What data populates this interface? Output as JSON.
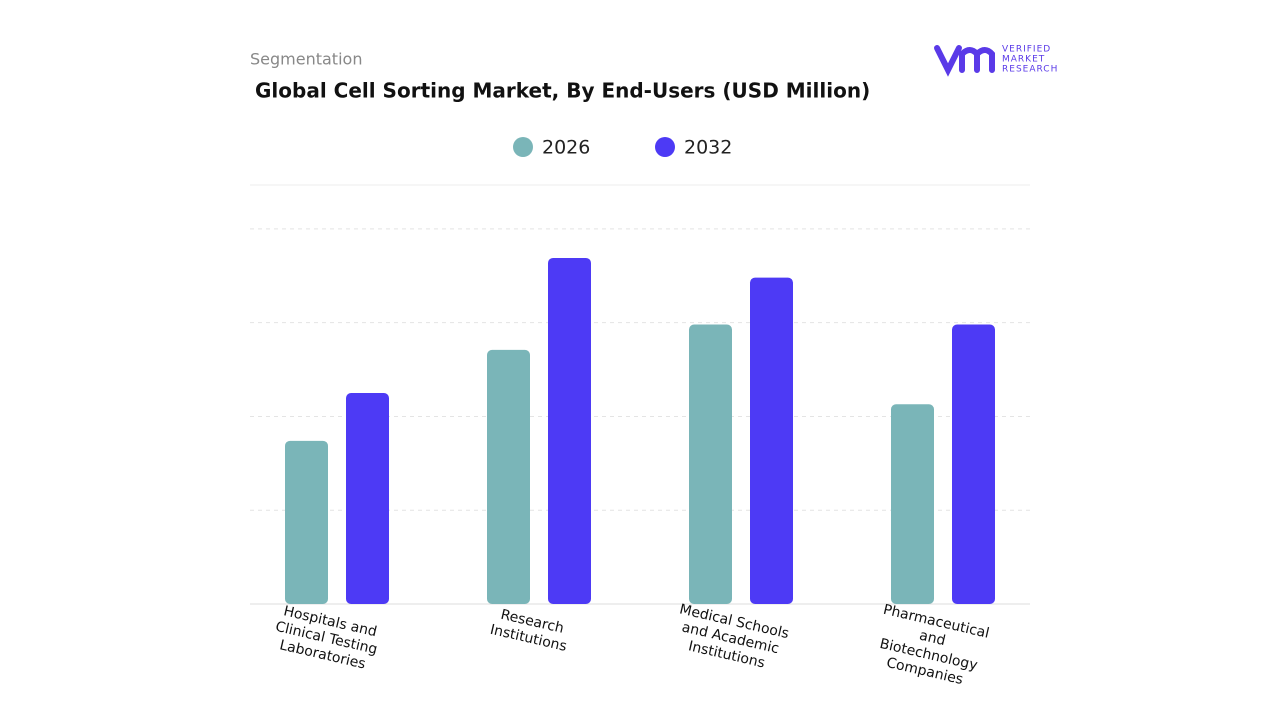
{
  "header": {
    "section": "Segmentation",
    "logo": [
      "VERIFIED",
      "MARKET",
      "RESEARCH"
    ]
  },
  "chart_data": {
    "type": "bar",
    "title": "Global Cell Sorting Market, By End-Users (USD Million)",
    "categories": [
      "Hospitals and Clinical Testing Laboratories",
      "Research Institutions",
      "Medical Schools and Academic Institutions",
      "Pharmaceutical and Biotechnology Companies"
    ],
    "series": [
      {
        "name": "2026",
        "color": "#7ab5b8",
        "values": [
          1.74,
          2.71,
          2.98,
          2.13
        ]
      },
      {
        "name": "2032",
        "color": "#4d3af5",
        "values": [
          2.25,
          3.69,
          3.48,
          2.98
        ]
      }
    ],
    "ylim": [
      0,
      4.5
    ],
    "grid_lines": [
      1,
      2,
      3,
      4
    ],
    "grid": true
  }
}
